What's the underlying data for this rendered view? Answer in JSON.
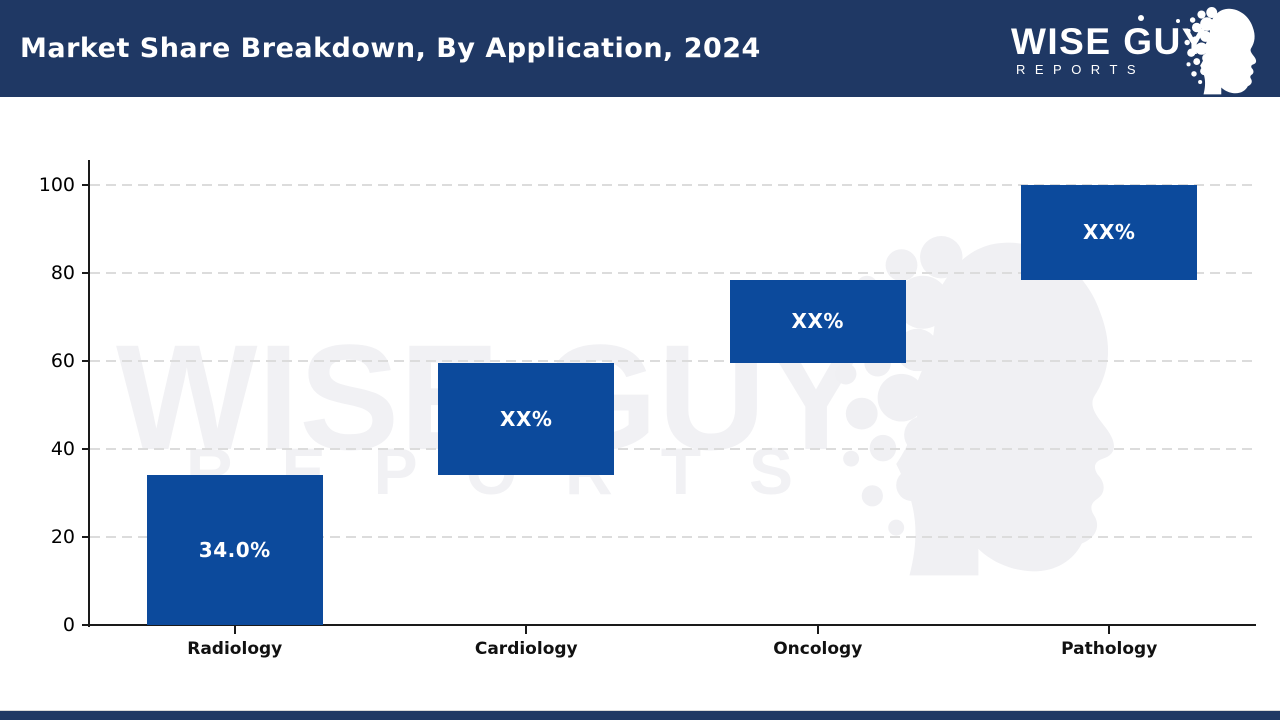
{
  "header": {
    "title": "Market Share Breakdown, By Application, 2024",
    "background": "#1f3864",
    "logo": {
      "line1": "WISE GUY",
      "line2": "REPORTS",
      "head_icon": "dotted-head-profile-icon"
    }
  },
  "watermark": {
    "line1": "WISE GUY",
    "line2": "REPORTS",
    "head_icon": "dotted-head-profile-icon",
    "color": "#f1f1f4"
  },
  "footer": {
    "background": "#1f3864"
  },
  "chart_data": {
    "type": "bar",
    "subtype": "floating-waterfall",
    "title": "Market Share Breakdown, By Application, 2024",
    "categories": [
      "Radiology",
      "Cardiology",
      "Oncology",
      "Pathology"
    ],
    "segments": [
      {
        "category": "Radiology",
        "start": 0,
        "end": 34,
        "label": "34.0%"
      },
      {
        "category": "Cardiology",
        "start": 34,
        "end": 59.5,
        "label": "XX%"
      },
      {
        "category": "Oncology",
        "start": 59.5,
        "end": 78.5,
        "label": "XX%"
      },
      {
        "category": "Pathology",
        "start": 78.5,
        "end": 100,
        "label": "XX%"
      }
    ],
    "yticks": [
      0,
      20,
      40,
      60,
      80,
      100
    ],
    "ylim": [
      0,
      105
    ],
    "xlabel": "",
    "ylabel": "",
    "grid": "horizontal-dashed",
    "gridline_color": "#dcdcdc",
    "legend": "none",
    "bar_color": "#0c4a9c",
    "bar_label_color": "#ffffff",
    "axis_color": "#1a1a1a"
  }
}
